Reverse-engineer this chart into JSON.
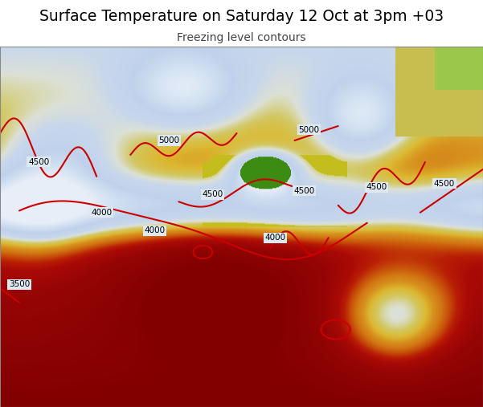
{
  "title": "Surface Temperature on Saturday 12 Oct at 3pm +03",
  "subtitle": "Freezing level contours",
  "title_fontsize": 13.5,
  "subtitle_fontsize": 10,
  "fig_width": 6.01,
  "fig_height": 5.07,
  "dpi": 100,
  "header_bg": "#f5f5f5",
  "contour_color": "#cc0000",
  "contour_label_bg": "#dde8f0",
  "stops_t": [
    0.0,
    0.1,
    0.2,
    0.3,
    0.35,
    0.4,
    0.45,
    0.5,
    0.55,
    0.6,
    0.65,
    0.7,
    0.8,
    1.0
  ],
  "stops_r": [
    232,
    210,
    192,
    200,
    220,
    210,
    220,
    215,
    210,
    200,
    185,
    170,
    150,
    130
  ],
  "stops_g": [
    238,
    225,
    210,
    215,
    225,
    200,
    185,
    145,
    120,
    80,
    30,
    10,
    5,
    0
  ],
  "stops_b": [
    248,
    242,
    235,
    235,
    215,
    100,
    50,
    30,
    20,
    10,
    5,
    5,
    5,
    0
  ]
}
